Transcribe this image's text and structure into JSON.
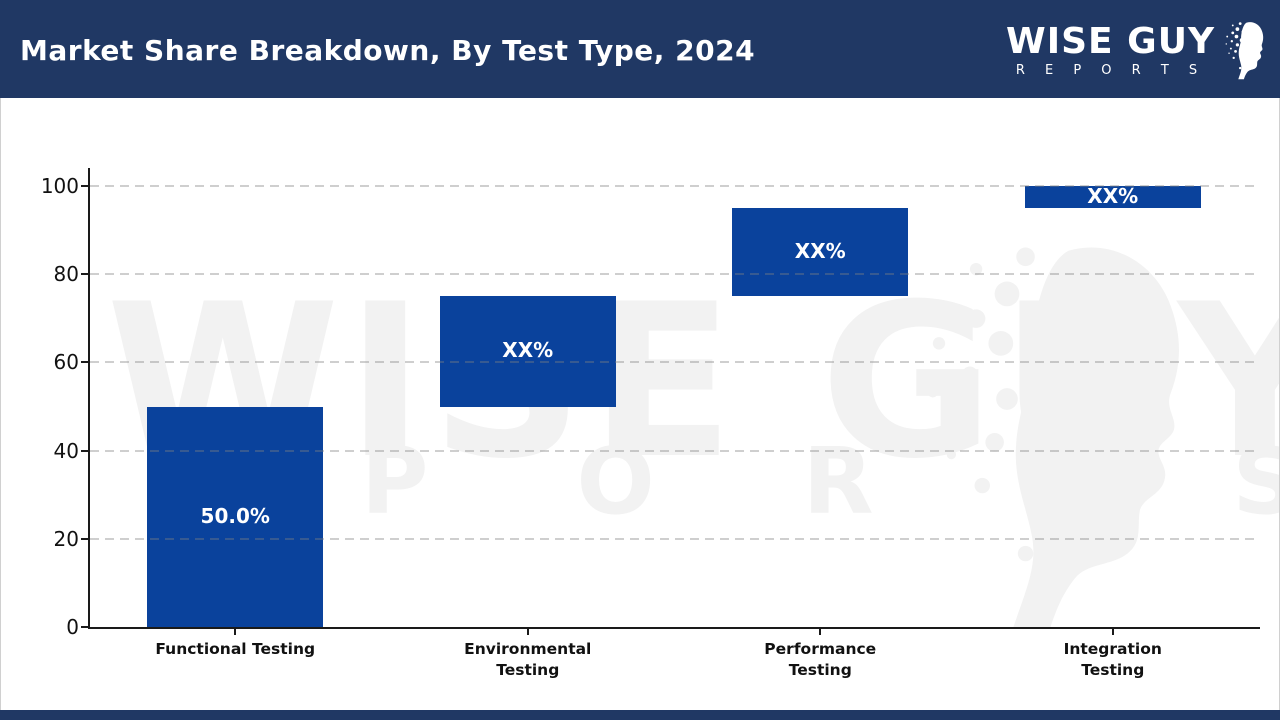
{
  "header": {
    "title": "Market Share Breakdown, By Test Type, 2024",
    "logo": {
      "brand_top": "WISE GUY",
      "brand_bottom": "R E P O R T S"
    }
  },
  "watermark": {
    "line1": "WISE GUY",
    "line2": "P O R T S"
  },
  "chart_data": {
    "type": "bar",
    "subtype": "waterfall",
    "title": "Market Share Breakdown, By Test Type, 2024",
    "categories": [
      [
        "Functional Testing"
      ],
      [
        "Environmental",
        "Testing"
      ],
      [
        "Performance",
        "Testing"
      ],
      [
        "Integration",
        "Testing"
      ]
    ],
    "segments": [
      {
        "category": "Functional Testing",
        "label": "50.0%",
        "start": 0,
        "end": 50
      },
      {
        "category": "Environmental Testing",
        "label": "XX%",
        "start": 50,
        "end": 75
      },
      {
        "category": "Performance Testing",
        "label": "XX%",
        "start": 75,
        "end": 95
      },
      {
        "category": "Integration Testing",
        "label": "XX%",
        "start": 95,
        "end": 100
      }
    ],
    "ylim": [
      0,
      100
    ],
    "yticks": [
      0,
      20,
      40,
      60,
      80,
      100
    ],
    "grid": "horizontal-dashed",
    "legend": "none",
    "bar_color": "#0a429c",
    "bar_label_color": "#ffffff"
  },
  "colors": {
    "header_bg": "#203864",
    "footer_bg": "#203864",
    "bar": "#0a429c",
    "grid": "#c8c8c8",
    "axis": "#1a1a1a",
    "watermark": "#f2f2f2"
  }
}
